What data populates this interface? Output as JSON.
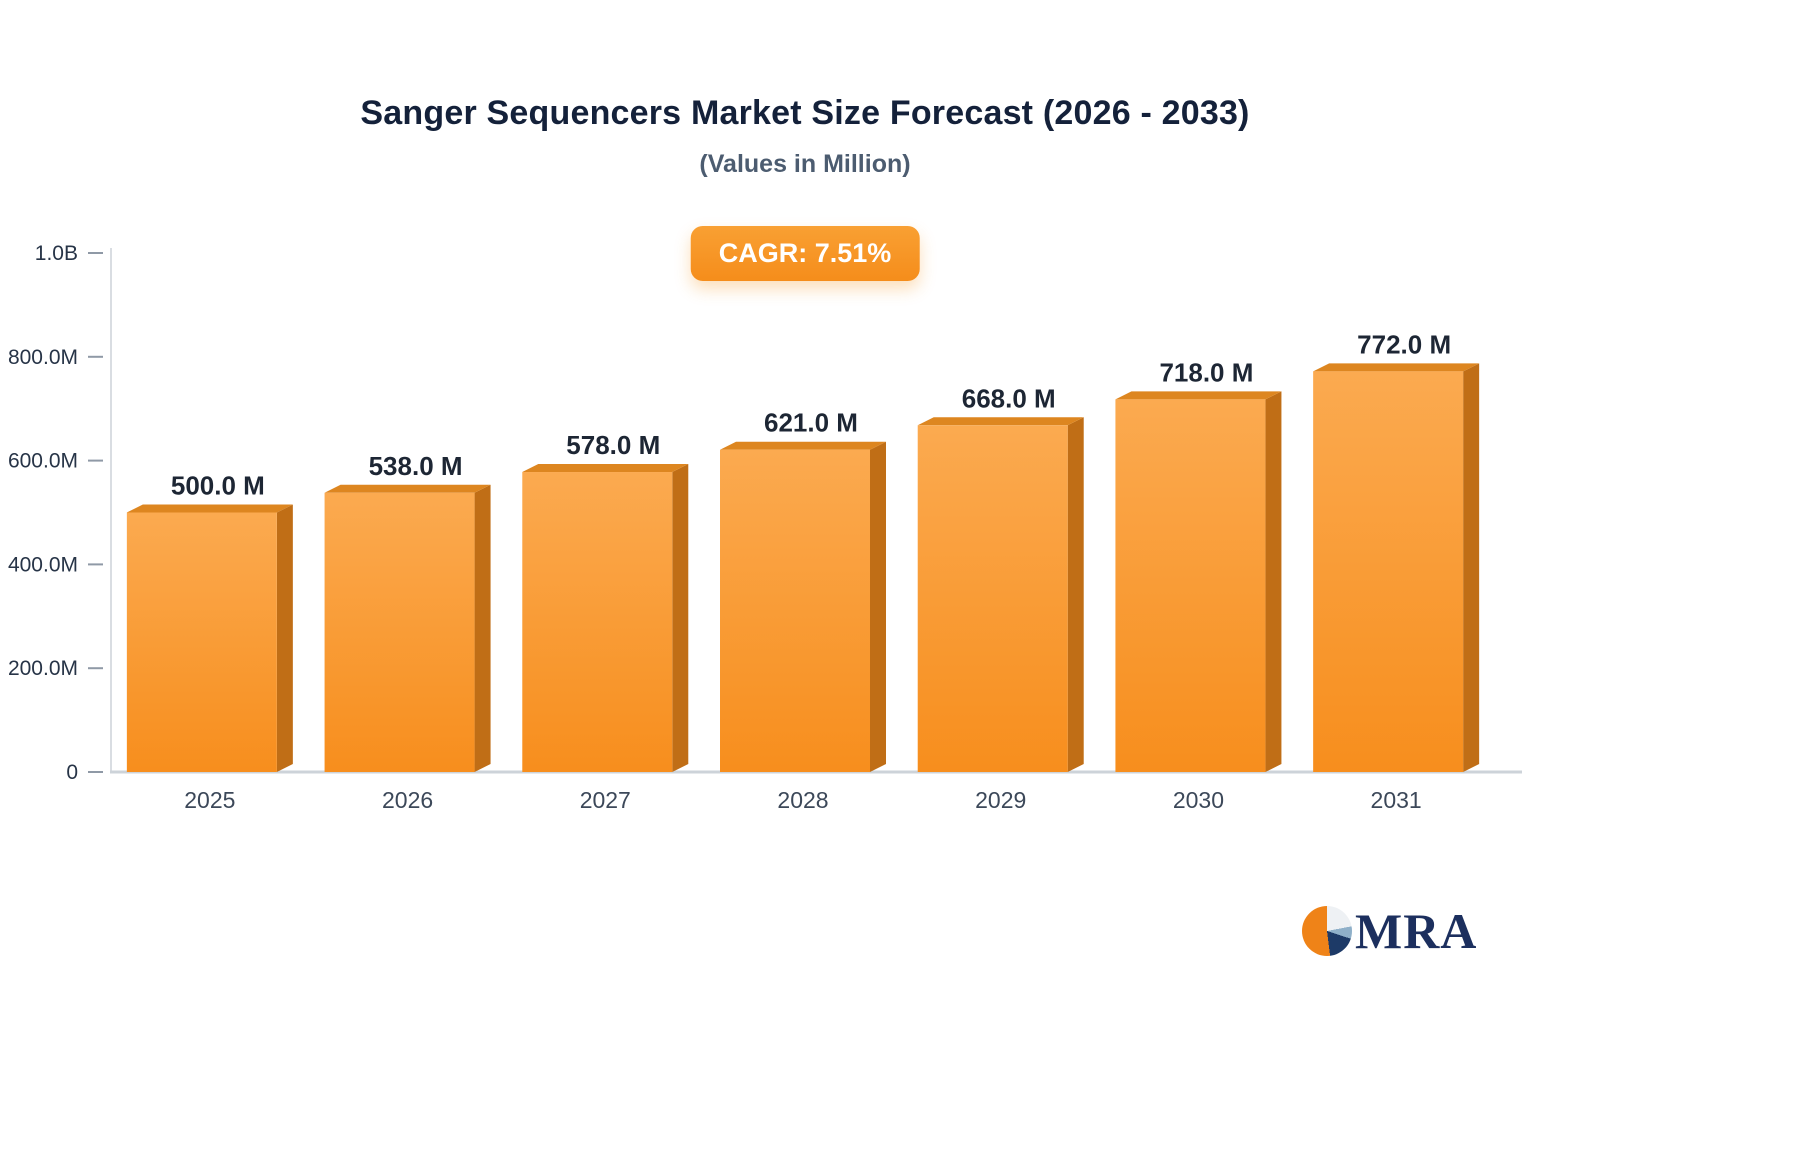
{
  "header": {
    "title": "Sanger Sequencers Market Size Forecast (2026 - 2033)",
    "subtitle": "(Values in Million)",
    "cagr_badge": "CAGR: 7.51%"
  },
  "logo": {
    "text": "MRA",
    "icon": "pie-chart-logo-icon"
  },
  "colors": {
    "accent_orange": "#f7941e",
    "title_navy": "#14213a",
    "subtitle_gray": "#4c5c70",
    "axis_text": "#273447",
    "badge_text": "#ffffff"
  },
  "chart_data": {
    "type": "bar",
    "title": "Sanger Sequencers Market Size Forecast (2026 - 2033)",
    "subtitle": "(Values in Million)",
    "cagr": "7.51%",
    "unit": "Million",
    "categories": [
      "2025",
      "2026",
      "2027",
      "2028",
      "2029",
      "2030",
      "2031"
    ],
    "values": [
      500.0,
      538.0,
      578.0,
      621.0,
      668.0,
      718.0,
      772.0
    ],
    "value_labels": [
      "500.0 M",
      "538.0 M",
      "578.0 M",
      "621.0 M",
      "668.0 M",
      "718.0 M",
      "772.0 M"
    ],
    "ylim": [
      0,
      1000
    ],
    "yticks": [
      0,
      200,
      400,
      600,
      800,
      1000
    ],
    "ytick_labels": [
      "0",
      "200.0M",
      "400.0M",
      "600.0M",
      "800.0M",
      "1.0B"
    ],
    "grid": false,
    "legend": "none",
    "bar_color": "#f78e1d",
    "bar_gradient_top": "#fbaa50",
    "bar_top_color": "#dd8620",
    "bar_side_color": "#c06e16"
  }
}
